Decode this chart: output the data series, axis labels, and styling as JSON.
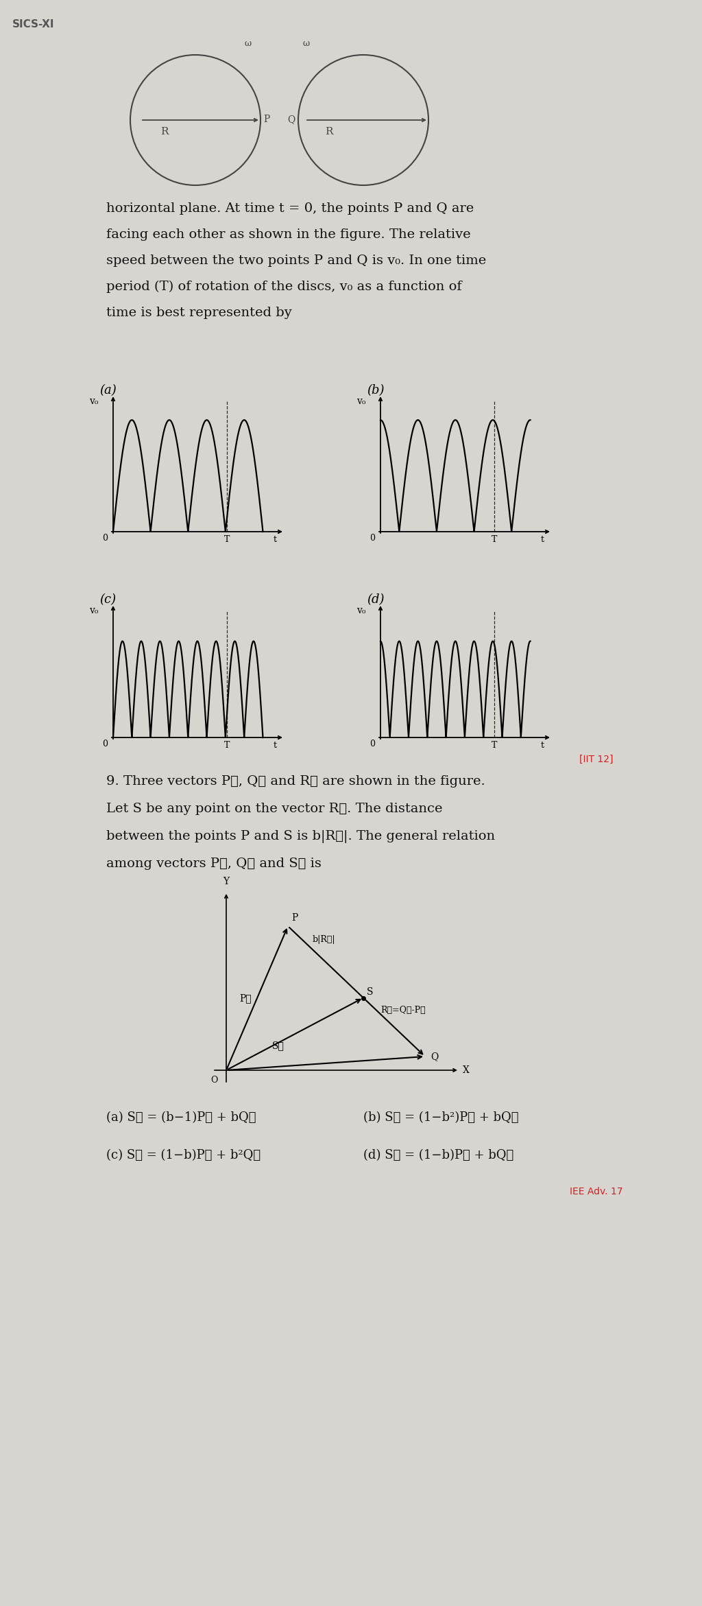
{
  "bg_color": "#d8d5d0",
  "text_color": "#111111",
  "gray_color": "#555555",
  "red_color": "#cc2222",
  "title": "SICS-XI",
  "body_lines": [
    "horizontal plane. At time t = 0, the points P and Q are",
    "facing each other as shown in the figure. The relative",
    "speed between the two points P and Q is v₀. In one time",
    "period (T) of rotation of the discs, v₀ as a function of",
    "time is best represented by"
  ],
  "q9_lines": [
    "9. Three vectors P, Q and R are shown in the figure.",
    "Let S be any point on the vector R. The distance",
    "between the points P and S is b|R|. The general relation",
    "among vectors P, Q and S is"
  ],
  "ans_lines": [
    [
      "(a) S = (b−1)P + bQ",
      "(b) S = (1−b²)P + bQ"
    ],
    [
      "(c) S = (1−b)P + b²Q",
      "(d) S = (1−b)P + bQ"
    ]
  ],
  "iit_ref": "[IIT 12]",
  "iit_adv": "IEE Adv. 17"
}
